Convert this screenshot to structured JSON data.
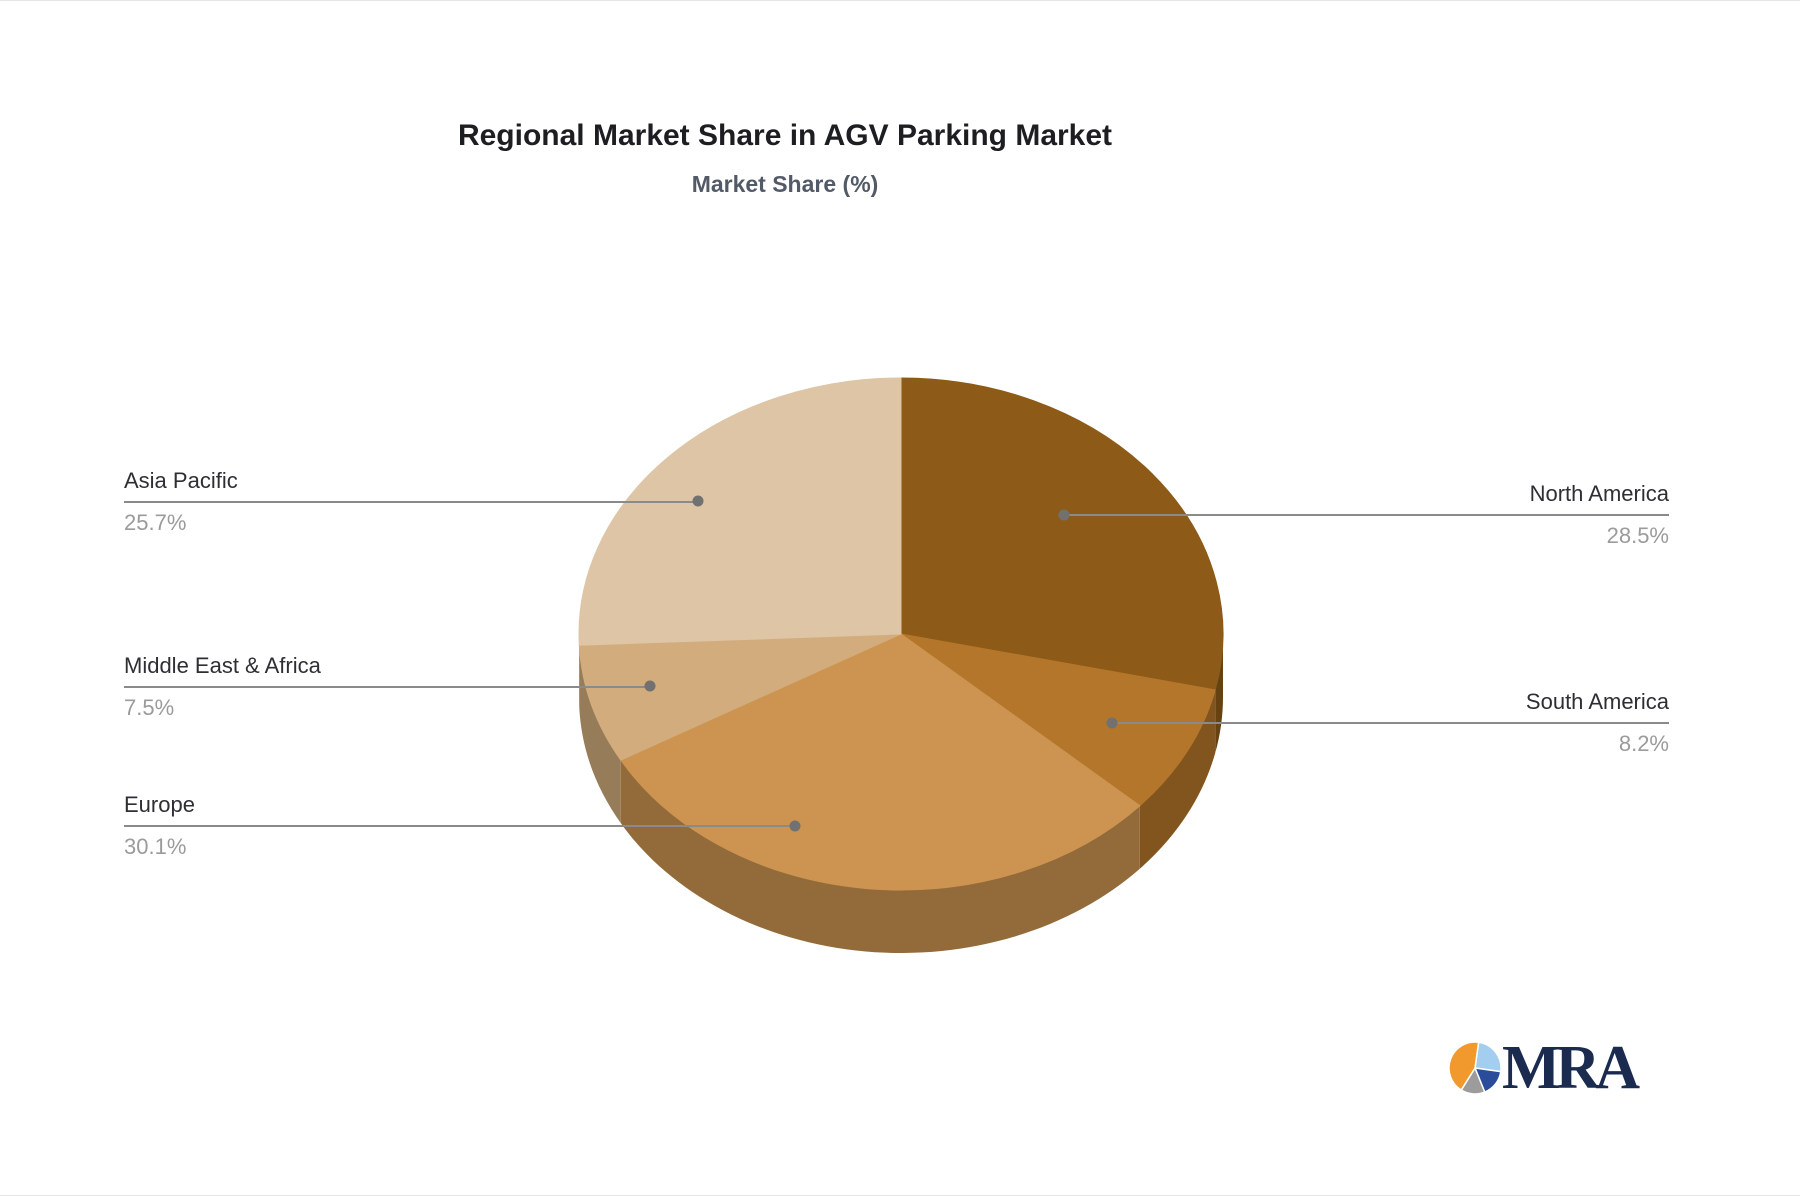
{
  "title": "Regional Market Share in AGV Parking Market",
  "subtitle": "Market Share (%)",
  "chart_data": {
    "type": "pie",
    "style": "3d",
    "title": "Regional Market Share in AGV Parking Market",
    "subtitle": "Market Share (%)",
    "unit": "%",
    "start_angle_deg": 0,
    "direction": "clockwise",
    "legend": "none",
    "slices": [
      {
        "label": "North America",
        "value": 28.5,
        "color": "#8D5B17",
        "label_side": "right"
      },
      {
        "label": "South America",
        "value": 8.2,
        "color": "#B4762A",
        "label_side": "right"
      },
      {
        "label": "Europe",
        "value": 30.1,
        "color": "#CC9450",
        "label_side": "left"
      },
      {
        "label": "Middle East & Africa",
        "value": 7.5,
        "color": "#D2AC7C",
        "label_side": "left"
      },
      {
        "label": "Asia Pacific",
        "value": 25.7,
        "color": "#DDC5A6",
        "label_side": "left"
      }
    ],
    "label_color": "#2E2F34",
    "value_color": "#9B9B9B",
    "connector_color": "#8A8A8A",
    "title_color": "#1D1E22",
    "subtitle_color": "#525A68"
  },
  "logo": {
    "text": "MRA",
    "text_color": "#1B2B4F",
    "icon_segments": [
      {
        "name": "light-blue",
        "color": "#A3CEEF",
        "from": 8,
        "to": 98
      },
      {
        "name": "dark-blue",
        "color": "#2B4B9B",
        "from": 98,
        "to": 158
      },
      {
        "name": "gray",
        "color": "#9C9C9C",
        "from": 158,
        "to": 212
      },
      {
        "name": "orange",
        "color": "#F1992D",
        "from": 212,
        "to": 368
      }
    ]
  }
}
